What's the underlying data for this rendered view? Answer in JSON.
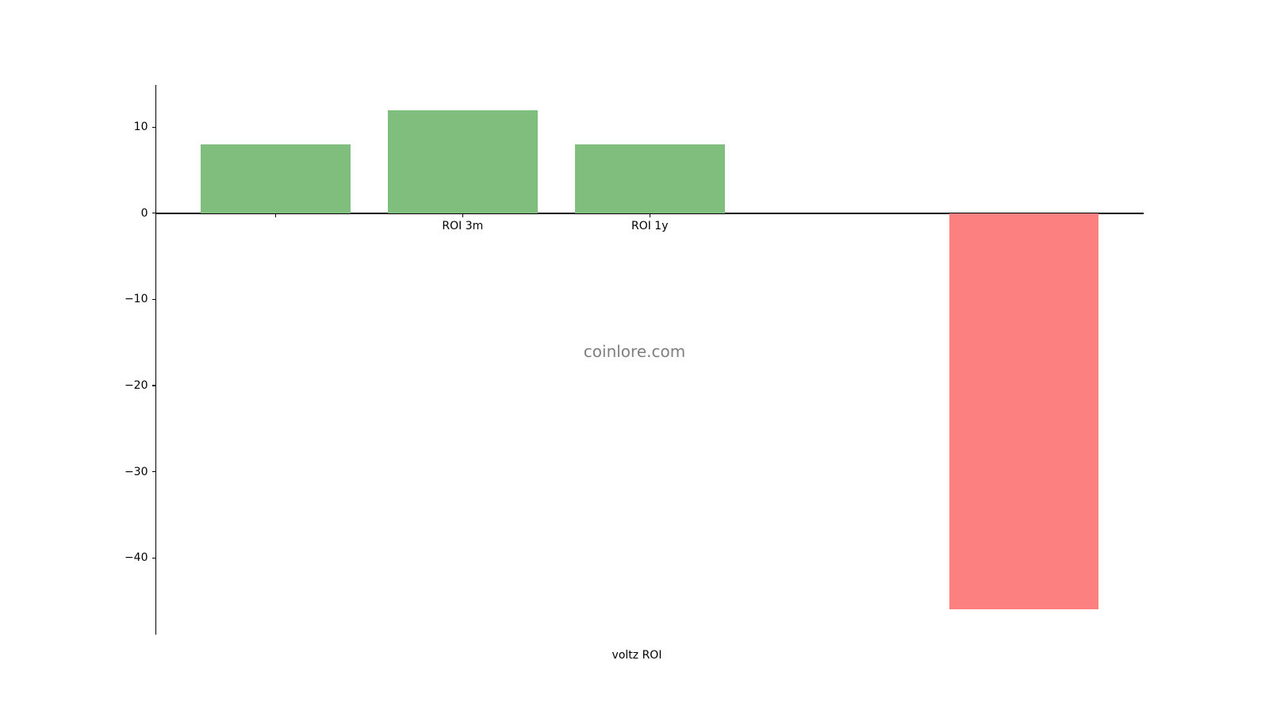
{
  "chart_data": {
    "type": "bar",
    "title": "",
    "xlabel": "voltz ROI",
    "ylabel": "",
    "watermark": "coinlore.com",
    "grid": false,
    "legend_position": "none",
    "ylim": [
      -48.9,
      14.9
    ],
    "xlim": [
      -0.64,
      4.64
    ],
    "yticks": [
      10,
      0,
      -10,
      -20,
      -30,
      -40
    ],
    "xticks": [
      {
        "slot": 0,
        "label": ""
      },
      {
        "slot": 1,
        "label": "ROI 3m"
      },
      {
        "slot": 2,
        "label": "ROI 1y"
      }
    ],
    "bars": [
      {
        "name": "bar-1",
        "label": "",
        "slot": 0,
        "value": 8,
        "color": "#7fbe7c"
      },
      {
        "name": "bar-roi-3m",
        "label": "ROI 3m",
        "slot": 1,
        "value": 12,
        "color": "#7fbe7c"
      },
      {
        "name": "bar-roi-1y",
        "label": "ROI 1y",
        "slot": 2,
        "value": 8,
        "color": "#7fbe7c"
      },
      {
        "name": "bar-4",
        "label": "",
        "slot": 4,
        "value": -46,
        "color": "#fc8080"
      }
    ],
    "colors": {
      "positive": "#7fbe7c",
      "negative": "#fc8080",
      "axis": "#000000",
      "watermark": "#7f7f7f",
      "background": "#ffffff"
    }
  }
}
